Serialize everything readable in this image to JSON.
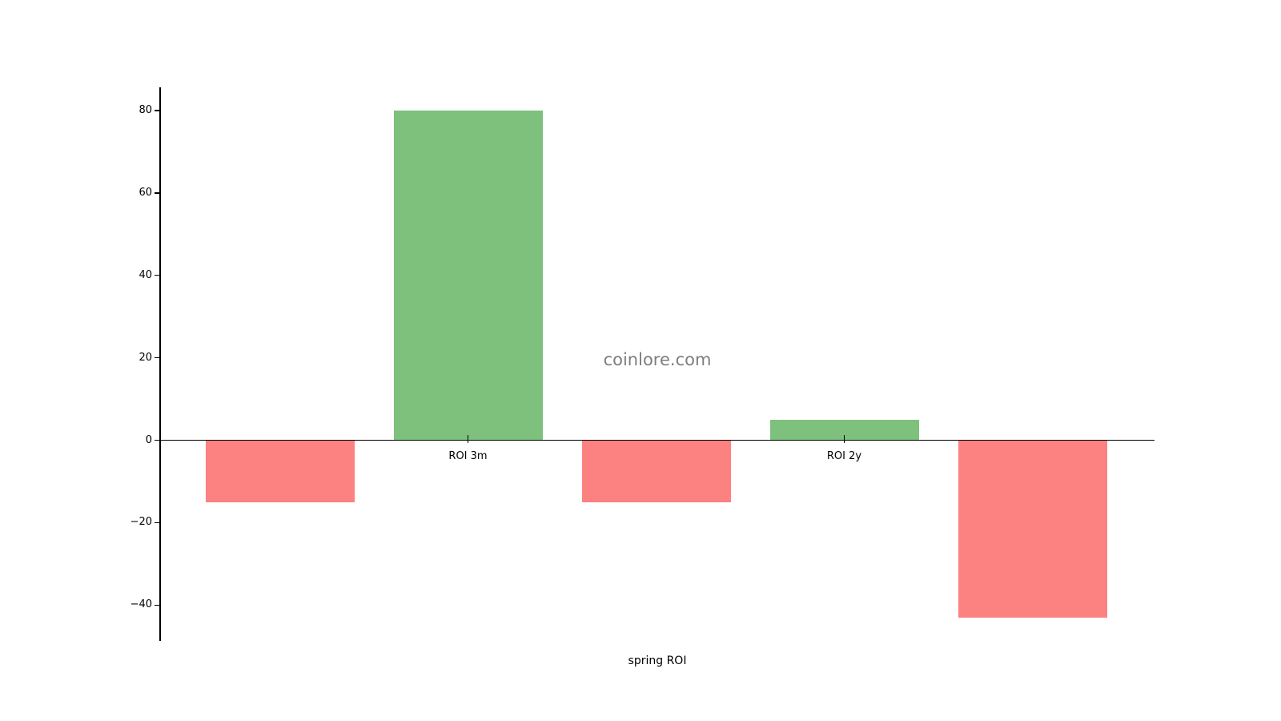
{
  "figure": {
    "watermark": "coinlore.com"
  },
  "chart_data": {
    "type": "bar",
    "xlabel": "spring ROI",
    "categories": [
      "",
      "ROI 3m",
      "",
      "ROI 2y",
      ""
    ],
    "values": [
      -15,
      80,
      -15,
      5,
      -43
    ],
    "y_ticks": [
      80,
      60,
      40,
      20,
      0,
      -20,
      -40
    ],
    "y_tick_labels": [
      "80",
      "60",
      "40",
      "20",
      "0",
      "−20",
      "−40"
    ],
    "ylim": [
      -48.7,
      85.7
    ],
    "grid": false,
    "legend": "none",
    "positive_color": "#7dc17d",
    "negative_color": "#fc8181",
    "bar_colors": [
      "#fc8181",
      "#7dc17d",
      "#fc8181",
      "#7dc17d",
      "#fc8181"
    ],
    "axis_color": "#000000",
    "watermark_color": "#7d7d7d"
  }
}
